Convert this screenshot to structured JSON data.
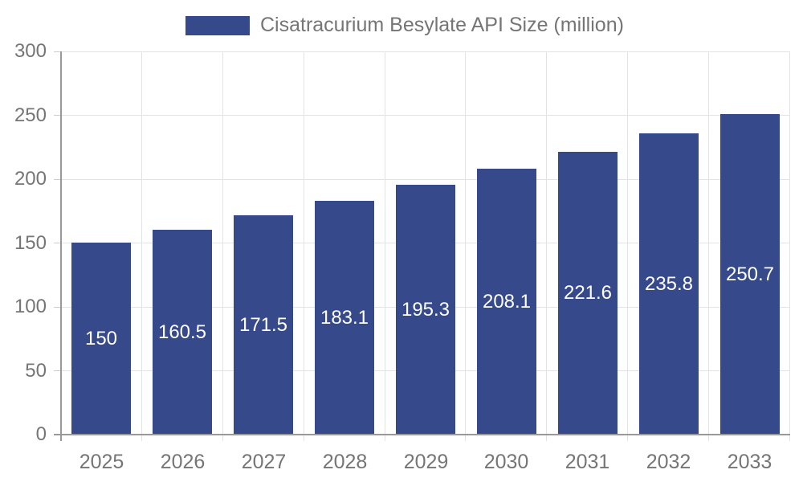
{
  "legend": {
    "label": "Cisatracurium Besylate API Size (million)"
  },
  "chart_data": {
    "type": "bar",
    "title": "Cisatracurium Besylate API Size (million)",
    "categories": [
      "2025",
      "2026",
      "2027",
      "2028",
      "2029",
      "2030",
      "2031",
      "2032",
      "2033"
    ],
    "values": [
      150,
      160.5,
      171.5,
      183.1,
      195.3,
      208.1,
      221.6,
      235.8,
      250.7
    ],
    "value_labels": [
      "150",
      "160.5",
      "171.5",
      "183.1",
      "195.3",
      "208.1",
      "221.6",
      "235.8",
      "250.7"
    ],
    "xlabel": "",
    "ylabel": "",
    "ylim": [
      0,
      300
    ],
    "yticks": [
      0,
      50,
      100,
      150,
      200,
      250,
      300
    ],
    "grid": true,
    "legend_position": "top",
    "colors": {
      "bar": "#36498a",
      "bar_label": "#ffffff",
      "axis_text": "#757575",
      "grid_line": "#e3e3e3",
      "axis_line": "#999999",
      "tick": "#cccccc",
      "background": "#ffffff"
    }
  }
}
